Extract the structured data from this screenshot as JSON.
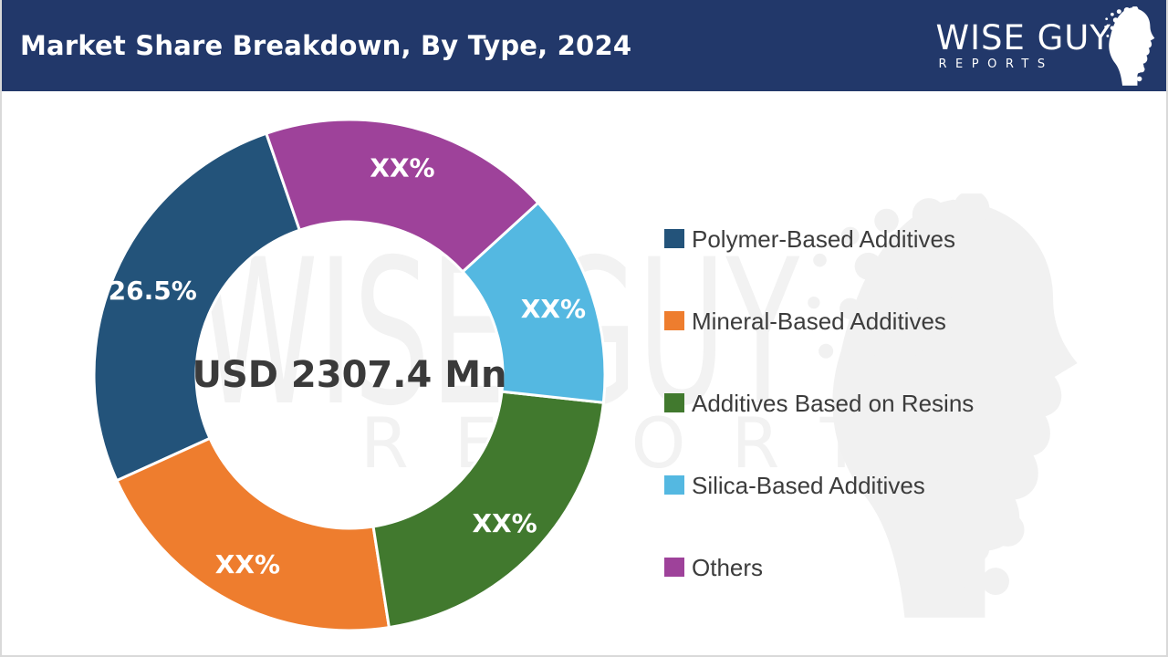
{
  "header": {
    "title": "Market Share Breakdown, By Type, 2024",
    "brand": {
      "line1": "WISE GUY",
      "line2": "REPORTS"
    },
    "bg_color": "#22386a"
  },
  "chart_data": {
    "type": "pie",
    "subtype": "donut",
    "title": "Market Share Breakdown, By Type, 2024",
    "center_label": "USD 2307.4 Mn",
    "total_value": 2307.4,
    "units": "USD Mn",
    "start_angle_deg": 341,
    "direction": "counterclockwise",
    "hole_ratio": 0.6,
    "legend_position": "right",
    "slices": [
      {
        "label": "Polymer-Based Additives",
        "display_label": "26.5%",
        "share_pct": 26.5,
        "color": "#23537a"
      },
      {
        "label": "Mineral-Based Additives",
        "display_label": "XX%",
        "share_pct": 20.7,
        "color": "#ee7d2e"
      },
      {
        "label": "Additives Based on Resins",
        "display_label": "XX%",
        "share_pct": 20.8,
        "color": "#41792e"
      },
      {
        "label": "Silica-Based Additives",
        "display_label": "XX%",
        "share_pct": 13.5,
        "color": "#54b8e1"
      },
      {
        "label": "Others",
        "display_label": "XX%",
        "share_pct": 18.5,
        "color": "#9e429a"
      }
    ]
  },
  "colors": {
    "header_bg": "#22386a",
    "center_text": "#3a3a3a",
    "legend_text": "#3c3c3c",
    "watermark": "#f2f2f2",
    "card_border": "#d9d9d9"
  }
}
